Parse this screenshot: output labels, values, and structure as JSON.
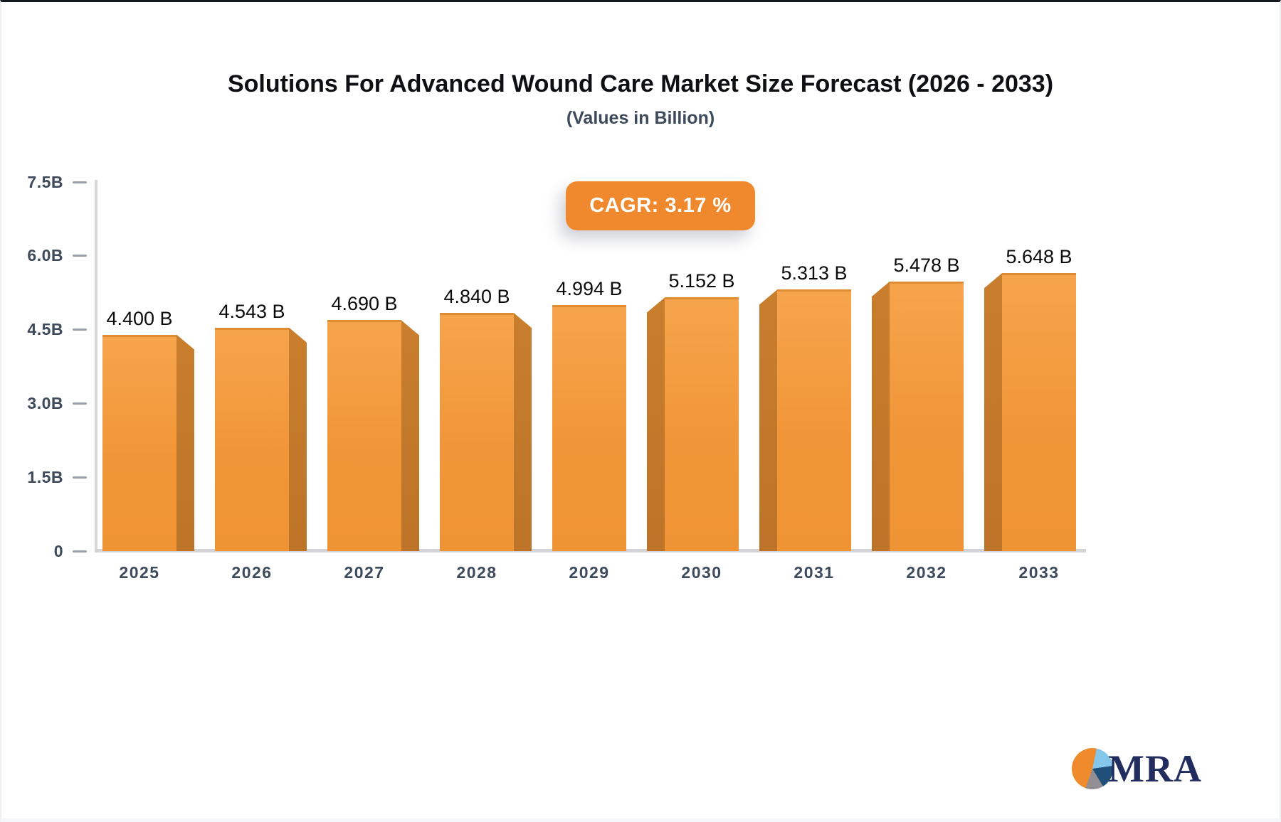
{
  "page": {
    "title": "Solutions For Advanced Wound Care Market Size Forecast (2026 - 2033)",
    "subtitle": "(Values in Billion)",
    "cagr_badge": "CAGR: 3.17 %"
  },
  "chart_data": {
    "type": "bar",
    "title": "Solutions For Advanced Wound Care Market Size Forecast (2026 - 2033)",
    "subtitle": "(Values in Billion)",
    "annotation": "CAGR: 3.17 %",
    "categories": [
      "2025",
      "2026",
      "2027",
      "2028",
      "2029",
      "2030",
      "2031",
      "2032",
      "2033"
    ],
    "values": [
      4.4,
      4.543,
      4.69,
      4.84,
      4.994,
      5.152,
      5.313,
      5.478,
      5.648
    ],
    "value_labels": [
      "4.400 B",
      "4.543 B",
      "4.690 B",
      "4.840 B",
      "4.994 B",
      "5.152 B",
      "5.313 B",
      "5.478 B",
      "5.648 B"
    ],
    "xlabel": "",
    "ylabel": "",
    "ylim": [
      0,
      7.5
    ],
    "yticks": [
      0,
      1.5,
      3.0,
      4.5,
      6.0,
      7.5
    ],
    "ytick_labels": [
      "0",
      "1.5B",
      "3.0B",
      "4.5B",
      "6.0B",
      "7.5B"
    ],
    "grid": false,
    "legend": false,
    "unit": "Billion USD"
  },
  "logo": {
    "text": "MRA",
    "icon": "pie-chart-icon"
  },
  "colors": {
    "bar_face": "#F19638",
    "bar_face_light": "#F6A44C",
    "bar_side": "#C1772A",
    "bar_top_edge": "#E08C33",
    "badge_background": "#F0892E",
    "badge_text": "#FFFFFF",
    "axis_line": "#D6D6DA",
    "tick_dash": "#9BA1A9",
    "axis_label_text": "#3D4A5C",
    "title_text": "#0D0F13",
    "value_label_text": "#0B0B0B",
    "logo_navy": "#212C5F",
    "logo_light_blue": "#85C7EA",
    "logo_dark_blue": "#1F4E79",
    "logo_gray": "#918F93",
    "logo_orange": "#EF8B2D"
  }
}
